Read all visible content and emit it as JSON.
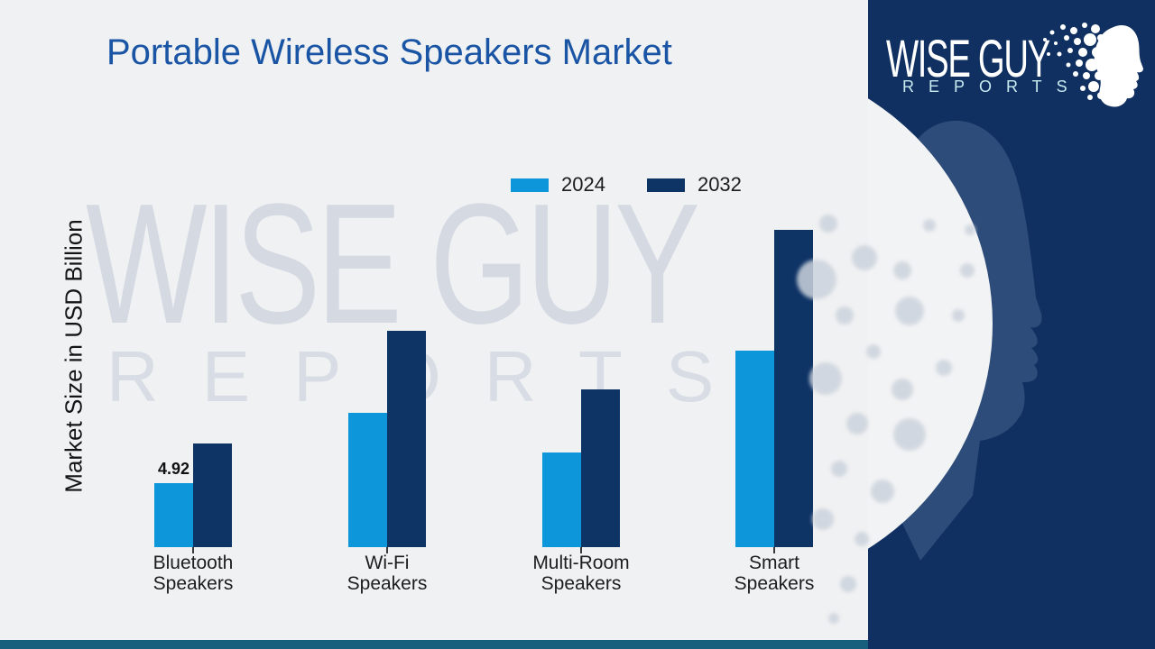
{
  "watermark": {
    "brand": "WISE GUY",
    "sub": "REPORTS"
  },
  "logo": {
    "brand": "WISE GUY",
    "sub": "REPORTS",
    "icon": "dotted-head-icon"
  },
  "colors": {
    "background": "#f0f1f2",
    "title_blue": "#1a55a5",
    "panel_navy": "#0f3061",
    "face_navy": "#2d4c7a",
    "accent_teal": "#185f7e",
    "watermark_gray": "#d4d9e2",
    "series_2024": "#0e96da",
    "series_2032": "#0e3365"
  },
  "chart_data": {
    "type": "bar",
    "title": "Portable Wireless Speakers Market",
    "ylabel": "Market Size in USD Billion",
    "xlabel": "",
    "categories": [
      "Bluetooth Speakers",
      "Wi-Fi Speakers",
      "Multi-Room Speakers",
      "Smart Speakers"
    ],
    "series": [
      {
        "name": "2024",
        "color": "#0e96da",
        "values": [
          4.92,
          10.3,
          7.3,
          15.1
        ]
      },
      {
        "name": "2032",
        "color": "#0e3365",
        "values": [
          8.0,
          16.6,
          12.1,
          24.4
        ]
      }
    ],
    "bar_labels": [
      {
        "category_index": 0,
        "series_index": 0,
        "text": "4.92"
      }
    ],
    "ylim": [
      0,
      26
    ],
    "grid": false,
    "legend_position": "top-right"
  }
}
